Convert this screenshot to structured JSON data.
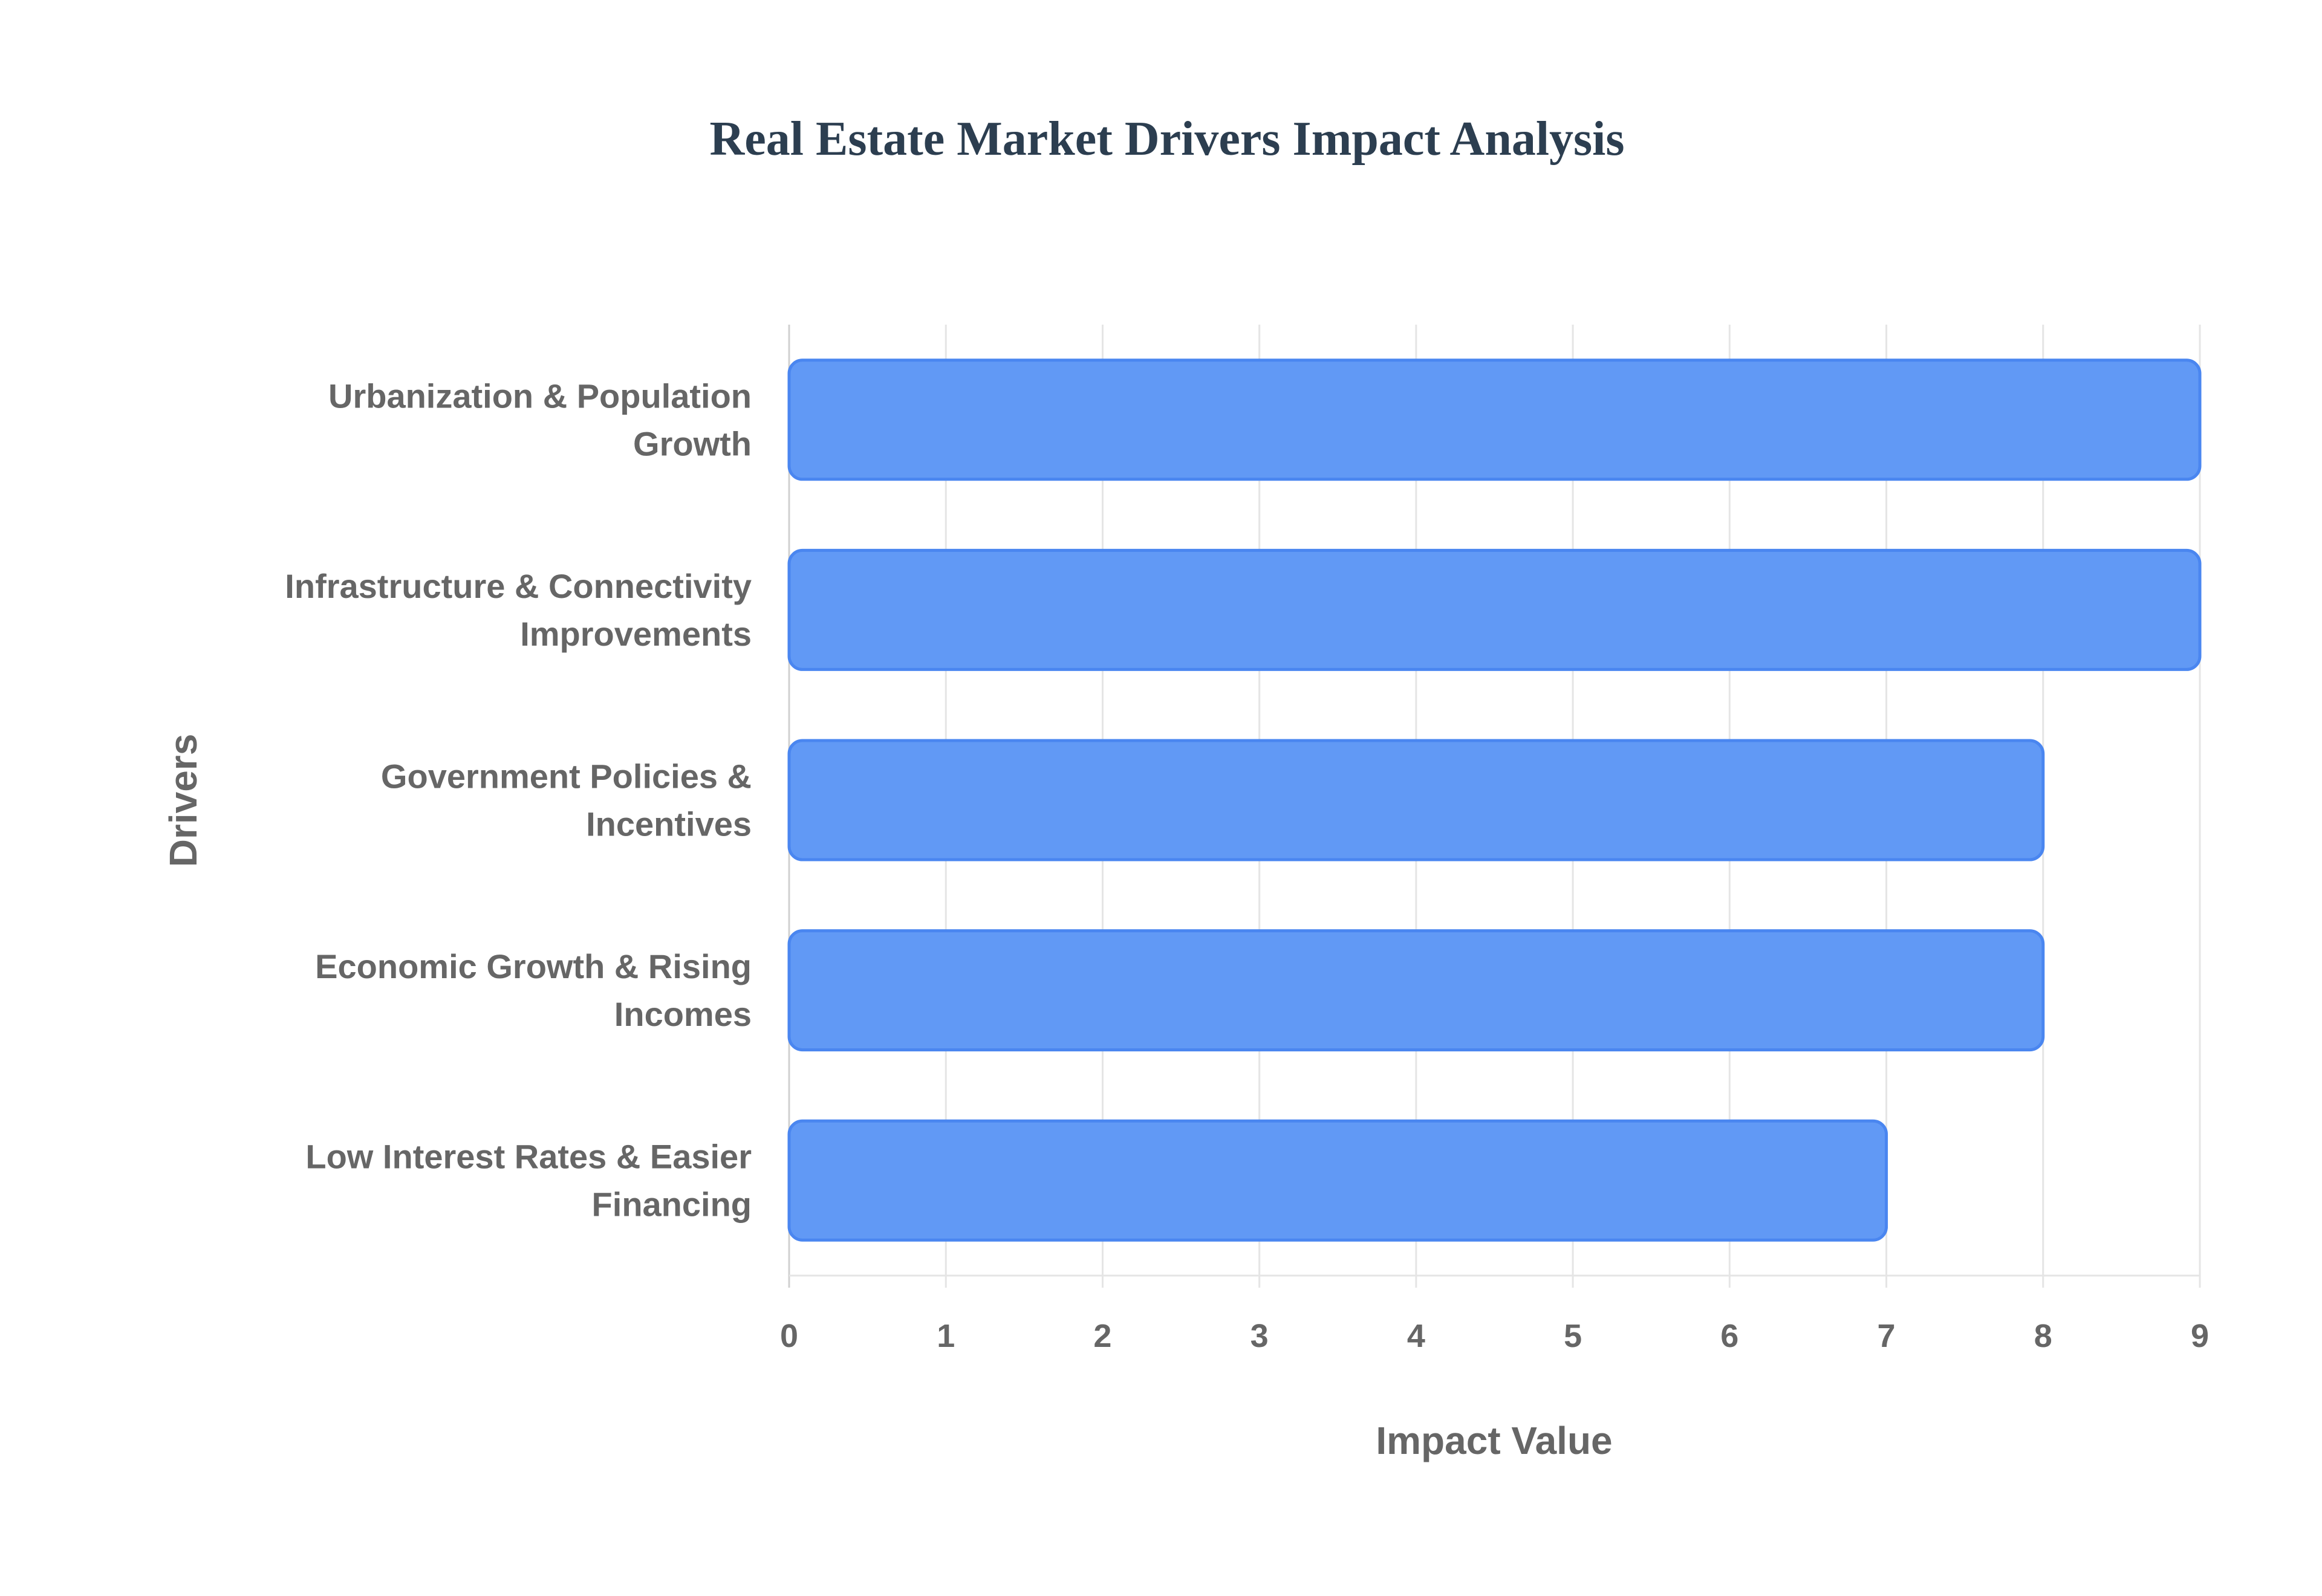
{
  "chart_data": {
    "type": "bar",
    "orientation": "horizontal",
    "title": "Real Estate Market Drivers Impact Analysis",
    "xlabel": "Impact Value",
    "ylabel": "Drivers",
    "categories": [
      [
        "Urbanization & Population",
        "Growth"
      ],
      [
        "Infrastructure & Connectivity",
        "Improvements"
      ],
      [
        "Government Policies &",
        "Incentives"
      ],
      [
        "Economic Growth & Rising",
        "Incomes"
      ],
      [
        "Low Interest Rates & Easier",
        "Financing"
      ]
    ],
    "values": [
      9,
      9,
      8,
      8,
      7
    ],
    "xlim": [
      0,
      9
    ],
    "xticks": [
      "0",
      "1",
      "2",
      "3",
      "4",
      "5",
      "6",
      "7",
      "8",
      "9"
    ],
    "grid": true,
    "legend": "none",
    "colors": {
      "bar_fill": "#6199f5",
      "bar_border": "#4a86f0",
      "grid": "#e5e5e5",
      "title": "#2c3e50",
      "text": "#666666"
    }
  }
}
